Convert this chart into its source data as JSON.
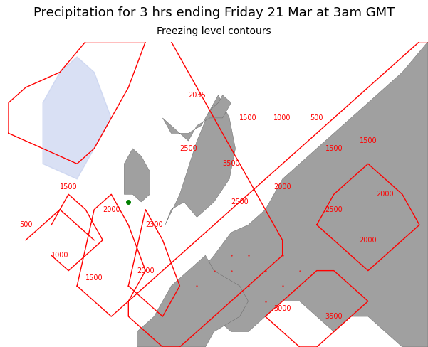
{
  "title": "Precipitation for 3 hrs ending Friday 21 Mar at 3am GMT",
  "subtitle": "Freezing level contours",
  "title_fontsize": 13,
  "subtitle_fontsize": 10,
  "background_color": "#ffffff",
  "map_bg_color": "#d8e8f5",
  "title_bg_color": "#f0f0f0",
  "figsize": [
    6.01,
    4.88
  ],
  "dpi": 100
}
